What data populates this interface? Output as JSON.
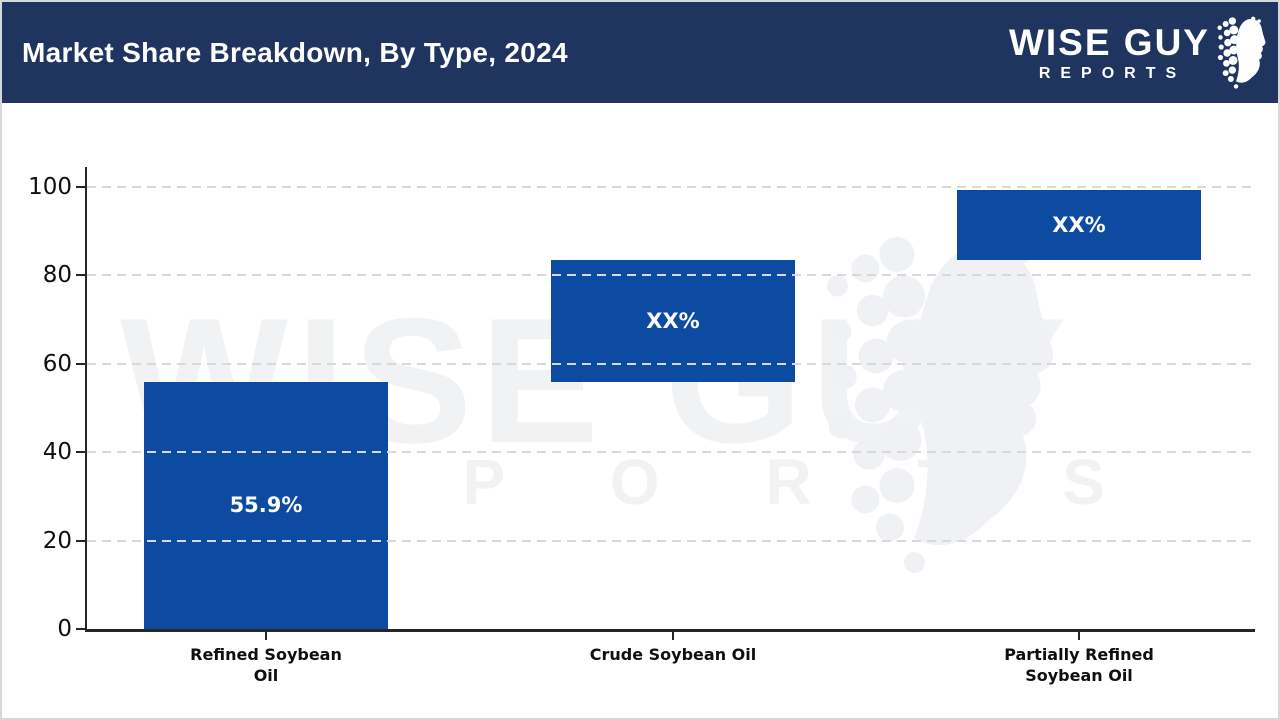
{
  "header": {
    "title": "Market Share Breakdown, By Type, 2024",
    "logo": {
      "name_line": "WISE GUY",
      "sub_line": "REPORTS"
    }
  },
  "watermark": {
    "big_text": "WISE GUY",
    "sub_text": "R E P O R T S"
  },
  "colors": {
    "header_bg": "#203460",
    "bar_blue": "#0d4aa1",
    "axis": "#262626",
    "gridline": "#d9d9d9",
    "page_border": "#d8d8d8",
    "watermark": "#f1f2f4"
  },
  "chart_data": {
    "type": "bar",
    "variant": "waterfall",
    "title": "Market Share Breakdown, By Type, 2024",
    "categories": [
      "Refined Soybean\nOil",
      "Crude Soybean Oil",
      "Partially Refined\nSoybean Oil"
    ],
    "bars": [
      {
        "category": "Refined Soybean Oil",
        "start": 0,
        "end": 55.9,
        "label": "55.9%"
      },
      {
        "category": "Crude Soybean Oil",
        "start": 55.9,
        "end": 83.5,
        "label": "XX%"
      },
      {
        "category": "Partially Refined Soybean Oil",
        "start": 83.5,
        "end": 99.3,
        "label": "XX%"
      }
    ],
    "xlabel": "",
    "ylabel": "",
    "yticks": [
      0,
      20,
      40,
      60,
      80,
      100
    ],
    "ylim": [
      0,
      104.5
    ],
    "grid": {
      "horizontal": true,
      "style": "dashed",
      "over_bars": true
    },
    "legend": "none",
    "bar_color": "#0d4aa1",
    "bar_label_color": "#ffffff"
  }
}
